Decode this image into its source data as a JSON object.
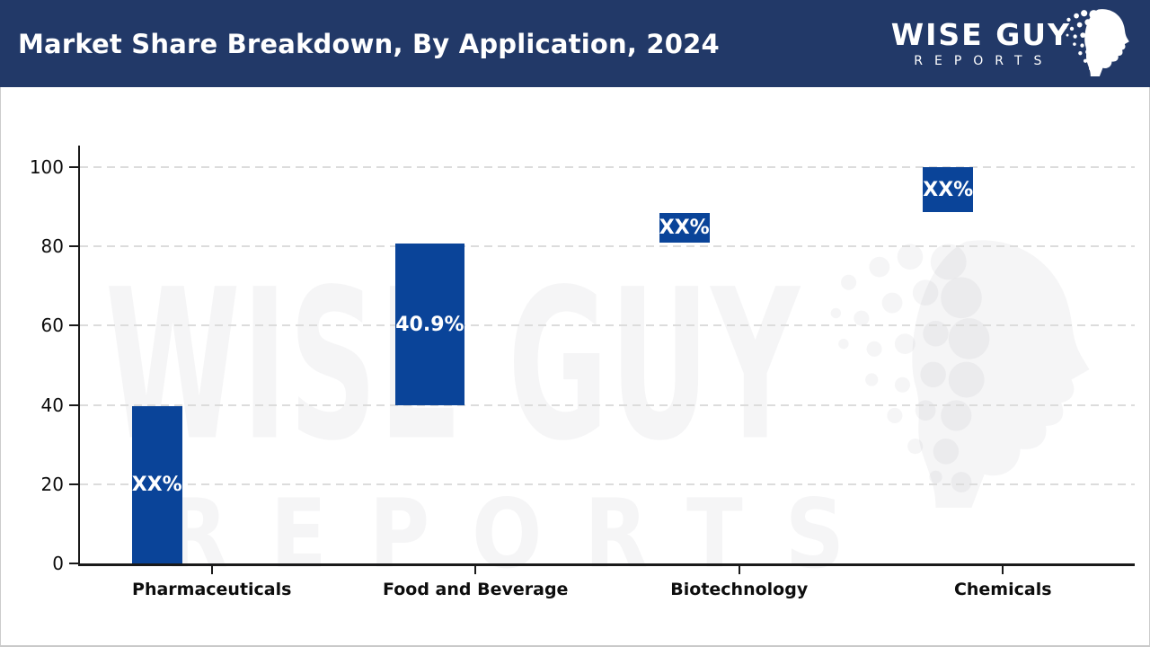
{
  "header": {
    "title": "Market Share Breakdown, By Application, 2024",
    "logo": {
      "line1": "WISE GUY",
      "line2": "REPORTS"
    }
  },
  "watermark": {
    "line1": "WISE GUY",
    "line2": "REPORTS"
  },
  "chart_data": {
    "type": "bar",
    "subtype": "waterfall",
    "title": "Market Share Breakdown, By Application, 2024",
    "categories": [
      "Pharmaceuticals",
      "Food and Beverage",
      "Biotechnology",
      "Chemicals"
    ],
    "series": [
      {
        "name": "Market share (%)",
        "segments": [
          {
            "category": "Pharmaceuticals",
            "start": 0,
            "end": 39.7,
            "label": "XX%"
          },
          {
            "category": "Food and Beverage",
            "start": 39.8,
            "end": 80.7,
            "label": "40.9%"
          },
          {
            "category": "Biotechnology",
            "start": 80.9,
            "end": 88.4,
            "label": "XX%"
          },
          {
            "category": "Chemicals",
            "start": 88.6,
            "end": 99.9,
            "label": "XX%"
          }
        ]
      }
    ],
    "xlabel": "",
    "ylabel": "",
    "ylim": [
      0,
      105
    ],
    "yticks": [
      0,
      20,
      40,
      60,
      80,
      100
    ],
    "grid": "horizontal-dashed",
    "legend": "none",
    "colors": {
      "bar": "#0a4499",
      "bar_label": "#ffffff",
      "grid": "#dcdcdc",
      "axis": "#1a1a1a",
      "header_bg": "#223968",
      "header_text": "#ffffff"
    }
  }
}
